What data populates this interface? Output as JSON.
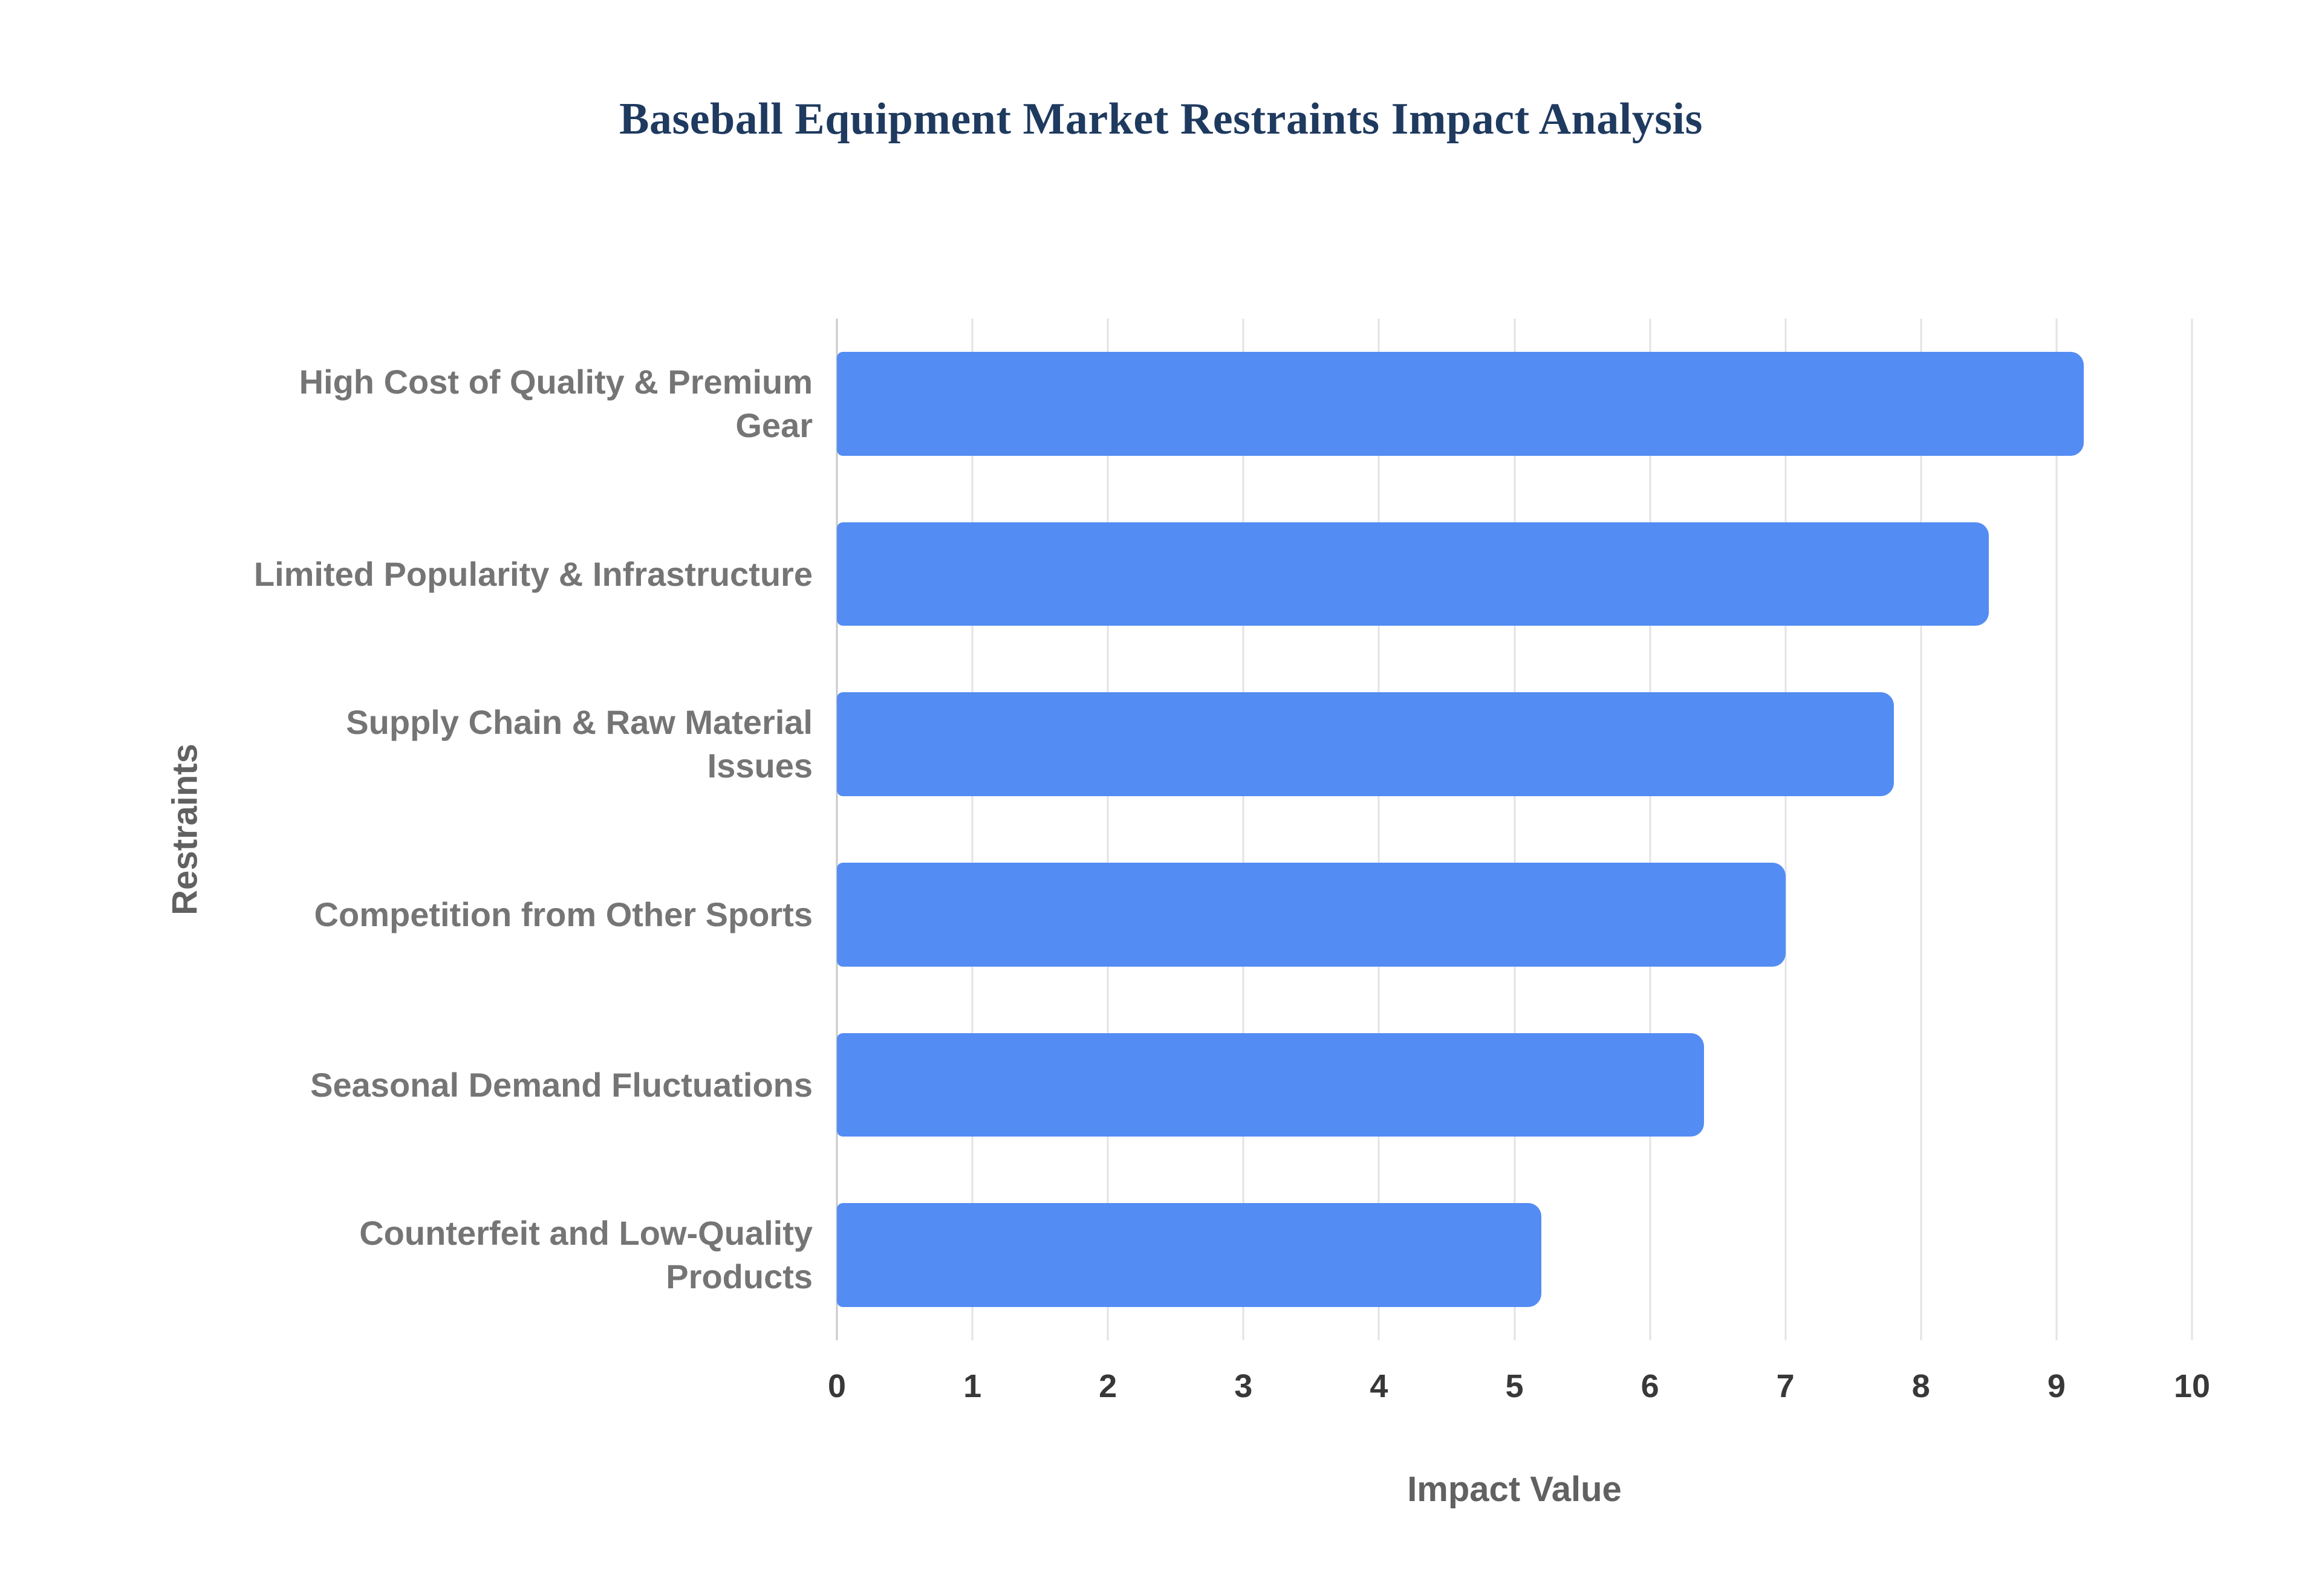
{
  "chart_data": {
    "type": "bar",
    "orientation": "horizontal",
    "title": "Baseball Equipment Market Restraints Impact Analysis",
    "xlabel": "Impact Value",
    "ylabel": "Restraints",
    "categories": [
      "High Cost of Quality & Premium Gear",
      "Limited Popularity & Infrastructure",
      "Supply Chain & Raw Material Issues",
      "Competition from Other Sports",
      "Seasonal Demand Fluctuations",
      "Counterfeit and Low-Quality Products"
    ],
    "values": [
      9.2,
      8.5,
      7.8,
      7.0,
      6.4,
      5.2
    ],
    "xlim": [
      0,
      10
    ],
    "xticks": [
      0,
      1,
      2,
      3,
      4,
      5,
      6,
      7,
      8,
      9,
      10
    ],
    "grid": "vertical",
    "legend": "none",
    "colors": {
      "bar": "#538cf3",
      "title": "#1f3a5f",
      "category_label": "#757575",
      "tick_label": "#383838",
      "axis_title": "#616161",
      "gridline": "#e3e3e3",
      "zero_axis_line": "#c9c9c9",
      "background": "#ffffff"
    }
  }
}
